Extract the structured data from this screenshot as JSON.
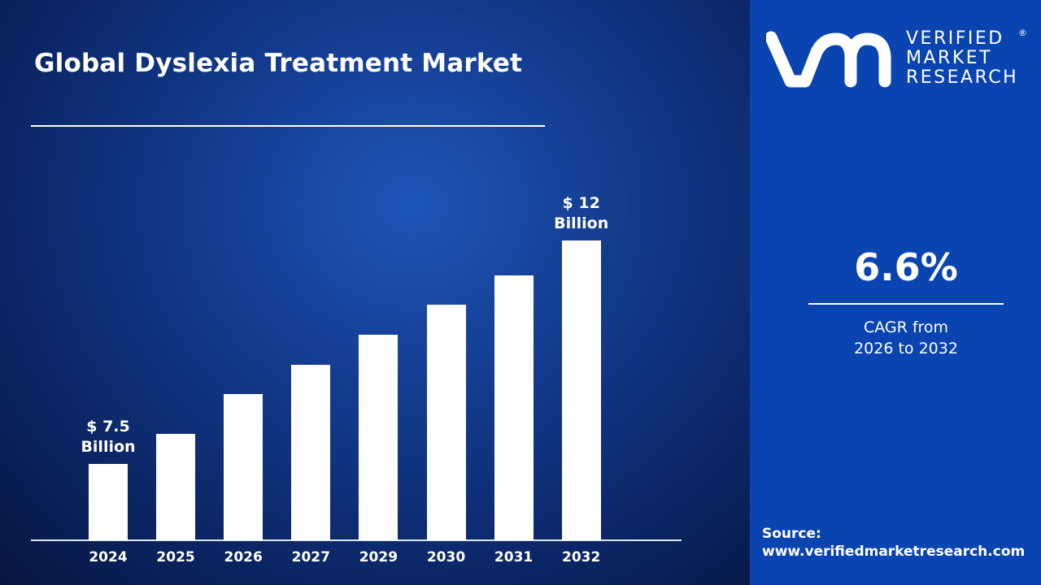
{
  "logo": {
    "line1": "VERIFIED",
    "line2": "MARKET",
    "line3": "RESEARCH",
    "mark": "vmr",
    "registered": "®"
  },
  "cagr": {
    "value": "6.6%",
    "label_line1": "CAGR from",
    "label_line2": "2026 to 2032"
  },
  "source": {
    "label": "Source:",
    "url": "www.verifiedmarketresearch.com"
  },
  "colors": {
    "bar": "#ffffff",
    "panel": "#0a44b0",
    "background": "#133c8f"
  },
  "chart_data": {
    "type": "bar",
    "title": "Global Dyslexia Treatment Market",
    "categories": [
      "2024",
      "2025",
      "2026",
      "2027",
      "2029",
      "2030",
      "2031",
      "2032"
    ],
    "values": [
      7.5,
      8.1,
      8.9,
      9.5,
      10.1,
      10.7,
      11.3,
      12
    ],
    "unit": "Billion USD",
    "data_labels": [
      {
        "index": 0,
        "line1": "$ 7.5",
        "line2": "Billion"
      },
      {
        "index": 7,
        "line1": "$ 12",
        "line2": "Billion"
      }
    ],
    "grid": false,
    "legend": "none"
  }
}
